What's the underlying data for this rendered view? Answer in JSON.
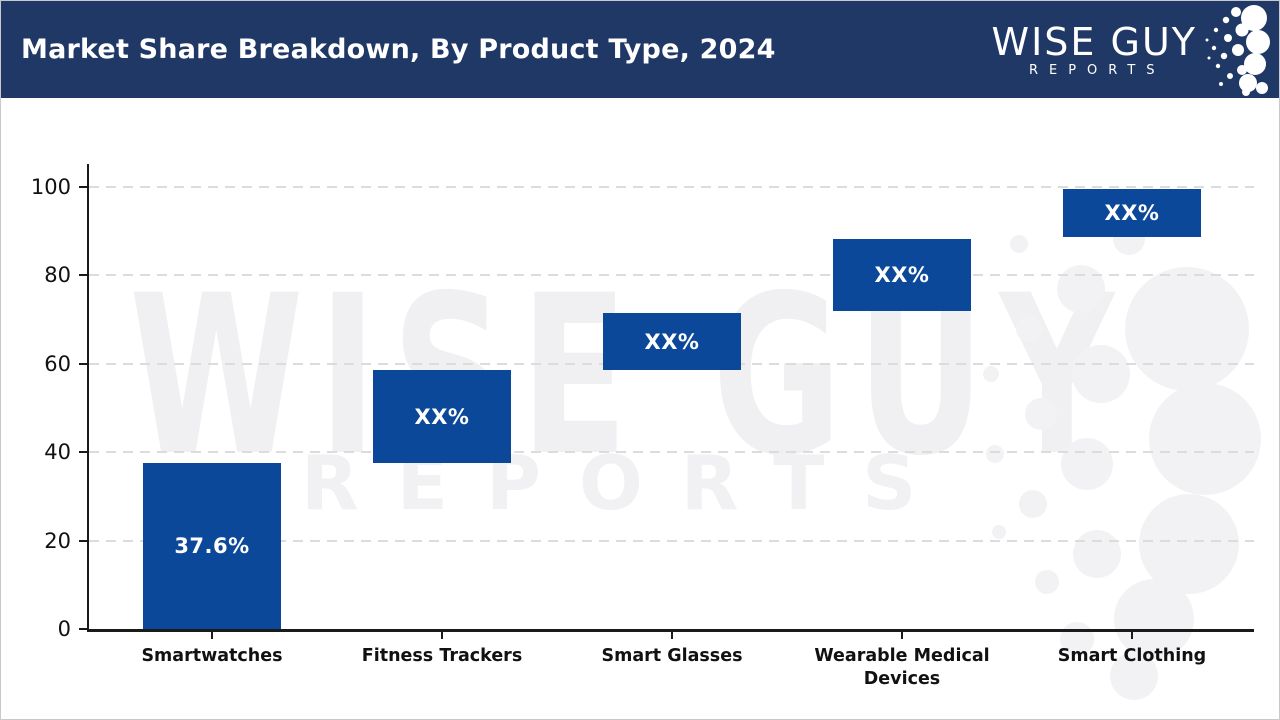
{
  "page": {
    "background": "#ffffff",
    "border_color": "#c9c9cd"
  },
  "header": {
    "title": "Market Share Breakdown, By Product Type, 2024",
    "background": "#203866",
    "logo": {
      "primary": "WISE GUY",
      "secondary": "REPORTS"
    }
  },
  "watermark": {
    "primary": "WISE GUY",
    "secondary": "REPORTS"
  },
  "chart_data": {
    "type": "bar",
    "subtype": "waterfall",
    "title": "Market Share Breakdown, By Product Type, 2024",
    "categories": [
      "Smartwatches",
      "Fitness Trackers",
      "Smart Glasses",
      "Wearable Medical Devices",
      "Smart Clothing"
    ],
    "bars": [
      {
        "category": "Smartwatches",
        "start": 0,
        "end": 37.6,
        "label": "37.6%"
      },
      {
        "category": "Fitness Trackers",
        "start": 37.6,
        "end": 58.5,
        "label": "XX%"
      },
      {
        "category": "Smart Glasses",
        "start": 58.5,
        "end": 71.4,
        "label": "XX%"
      },
      {
        "category": "Wearable Medical Devices",
        "start": 72.0,
        "end": 88.3,
        "label": "XX%"
      },
      {
        "category": "Smart Clothing",
        "start": 88.6,
        "end": 99.5,
        "label": "XX%"
      }
    ],
    "yticks": [
      0,
      20,
      40,
      60,
      80,
      100
    ],
    "ylim": [
      0,
      105
    ],
    "xlabel": "",
    "ylabel": "",
    "grid": "horizontal-dashed",
    "legend": "none",
    "bar_color": "#0c4899",
    "bar_label_color": "#ffffff",
    "axis_color": "#1a1a1a",
    "grid_color": "#dcdcdc"
  }
}
